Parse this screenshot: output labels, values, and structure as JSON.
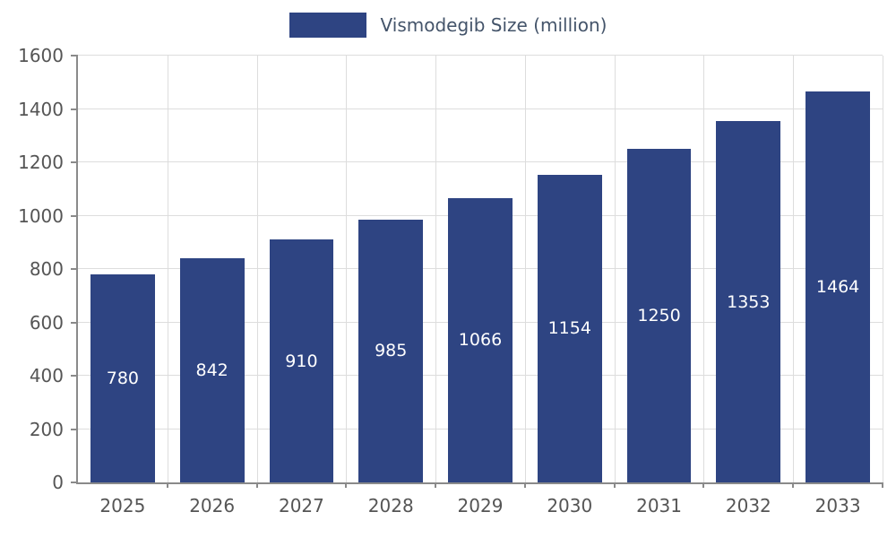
{
  "colors": {
    "bar": "#2e4482",
    "axis": "#8a8a8a",
    "grid": "#dddddd",
    "tick_text": "#555555",
    "legend_text": "#44546a",
    "bar_label": "#ffffff"
  },
  "chart_data": {
    "type": "bar",
    "title": "Vismodegib Size (million)",
    "categories": [
      "2025",
      "2026",
      "2027",
      "2028",
      "2029",
      "2030",
      "2031",
      "2032",
      "2033"
    ],
    "values": [
      780,
      842,
      910,
      985,
      1066,
      1154,
      1250,
      1353,
      1464
    ],
    "xlabel": "",
    "ylabel": "",
    "ylim": [
      0,
      1600
    ],
    "yticks": [
      0,
      200,
      400,
      600,
      800,
      1000,
      1200,
      1400,
      1600
    ],
    "grid": true,
    "legend_position": "top",
    "legend_entries": [
      "Vismodegib Size (million)"
    ],
    "bar_labels": true
  }
}
